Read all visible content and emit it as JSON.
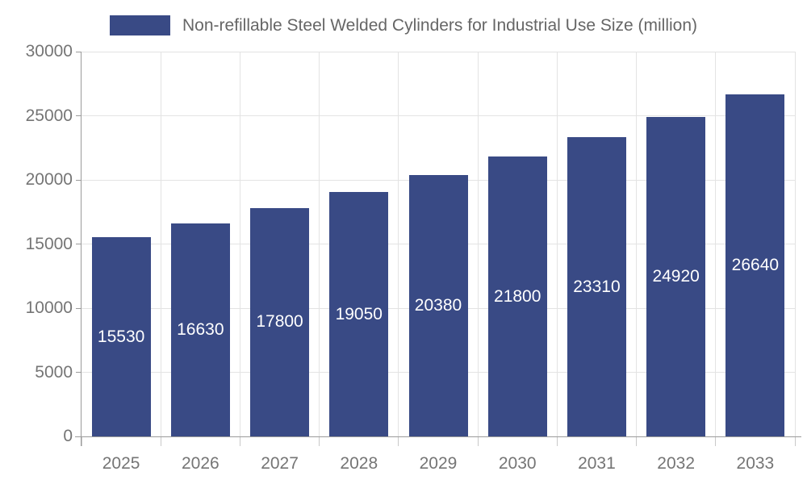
{
  "chart_data": {
    "type": "bar",
    "title": "Non-refillable Steel Welded Cylinders for Industrial Use Size (million)",
    "categories": [
      "2025",
      "2026",
      "2027",
      "2028",
      "2029",
      "2030",
      "2031",
      "2032",
      "2033"
    ],
    "values": [
      15530,
      16630,
      17800,
      19050,
      20380,
      21800,
      23310,
      24920,
      26640
    ],
    "xlabel": "",
    "ylabel": "",
    "ylim": [
      0,
      30000
    ],
    "yticks": [
      0,
      5000,
      10000,
      15000,
      20000,
      25000,
      30000
    ],
    "grid": true,
    "legend_position": "top",
    "value_labels_inside_bars": true,
    "colors": {
      "bar": "#394A85",
      "value_label": "#FFFFFF",
      "axis_text": "#757575",
      "legend_text": "#666666",
      "grid_line": "#E3E3E3",
      "tick_line": "#C9C9C9",
      "axis_line": "#9B9B9B"
    }
  }
}
